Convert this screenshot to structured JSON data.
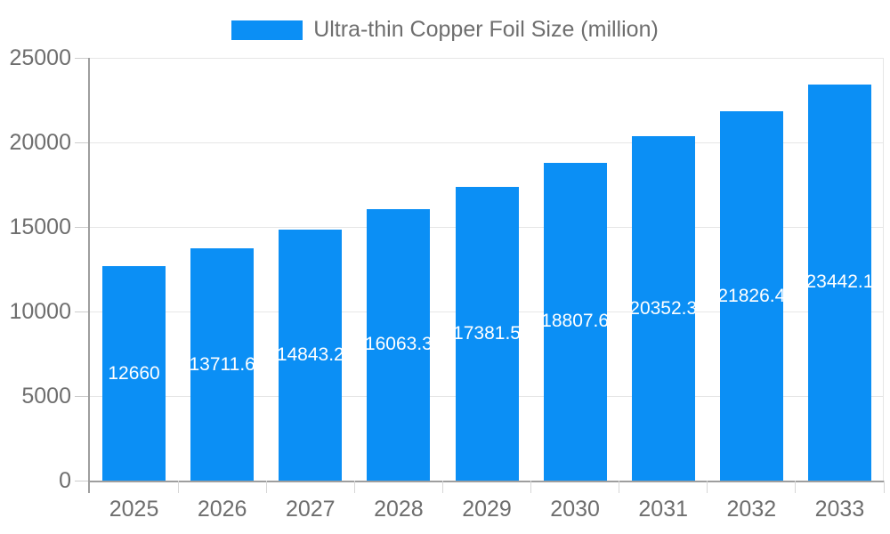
{
  "legend": {
    "label": "Ultra-thin Copper Foil Size (million)"
  },
  "chart_data": {
    "type": "bar",
    "legend": "Ultra-thin Copper Foil Size (million)",
    "legend_position": "top",
    "categories": [
      "2025",
      "2026",
      "2027",
      "2028",
      "2029",
      "2030",
      "2031",
      "2032",
      "2033"
    ],
    "values": [
      12660,
      13711.6,
      14843.2,
      16063.3,
      17381.5,
      18807.6,
      20352.3,
      21826.4,
      23442.1
    ],
    "bar_labels": [
      "12660",
      "13711.6",
      "14843.2",
      "16063.3",
      "17381.5",
      "18807.6",
      "20352.3",
      "21826.4",
      "23442.1"
    ],
    "xlabel": "",
    "ylabel": "",
    "ylim": [
      0,
      25000
    ],
    "yticks": [
      0,
      5000,
      10000,
      15000,
      20000,
      25000
    ],
    "grid": true,
    "colors": {
      "bar": "#0b8ff5",
      "axis": "#9e9e9e",
      "grid": "#e6e6e6",
      "tick": "#cccccc",
      "axis_text": "#6e6e6e",
      "bar_label_text": "#ffffff"
    }
  }
}
